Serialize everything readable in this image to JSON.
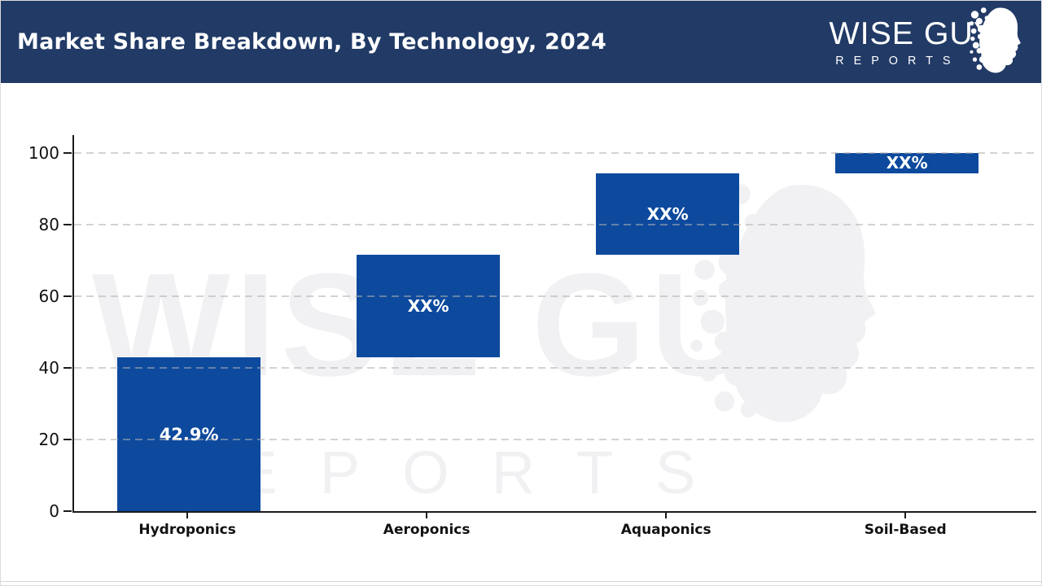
{
  "header": {
    "title": "Market Share Breakdown, By Technology, 2024"
  },
  "brand": {
    "name_line1": "WISE GUY",
    "name_line2": "REPORTS"
  },
  "watermark": {
    "line1": "WISE GUY",
    "line2": "REPORTS"
  },
  "colors": {
    "header_bg": "#213a66",
    "bar": "#0d4a9e",
    "bar_label": "#ffffff",
    "grid": "#d9d9d9",
    "axis": "#1a1a1a",
    "watermark": "#f1f1f3",
    "title_text": "#ffffff"
  },
  "chart_data": {
    "type": "bar",
    "subtype": "waterfall",
    "title": "Market Share Breakdown, By Technology, 2024",
    "xlabel": "",
    "ylabel": "",
    "categories": [
      "Hydroponics",
      "Aeroponics",
      "Aquaponics",
      "Soil-Based"
    ],
    "segments": [
      {
        "category": "Hydroponics",
        "start": 0,
        "end": 42.9,
        "label": "42.9%"
      },
      {
        "category": "Aeroponics",
        "start": 42.9,
        "end": 71.5,
        "label": "XX%"
      },
      {
        "category": "Aquaponics",
        "start": 71.5,
        "end": 94.4,
        "label": "XX%"
      },
      {
        "category": "Soil-Based",
        "start": 94.4,
        "end": 100,
        "label": "XX%"
      }
    ],
    "yticks": [
      0,
      20,
      40,
      60,
      80,
      100
    ],
    "ylim": [
      0,
      105
    ],
    "xlim": [
      -0.48,
      3.54
    ],
    "bar_width_units": 0.6,
    "grid": true,
    "grid_on_top": true,
    "legend": "none"
  }
}
